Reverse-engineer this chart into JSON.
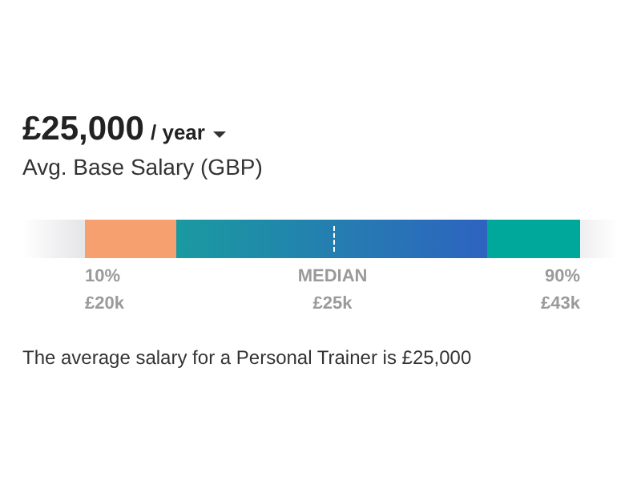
{
  "chart_data": {
    "type": "other",
    "title": "£25,000",
    "subtitle": "/ year",
    "categories": [
      "10%",
      "MEDIAN",
      "90%"
    ],
    "values": [
      20,
      25,
      43
    ],
    "value_labels": [
      "£20k",
      "£25k",
      "£43k"
    ],
    "colors": [
      "#f5a06e",
      "#1a9aa0",
      "#00a89c"
    ],
    "annotations": [
      "Avg. Base Salary (GBP)",
      "The average salary for a Personal Trainer is £25,000"
    ]
  }
}
